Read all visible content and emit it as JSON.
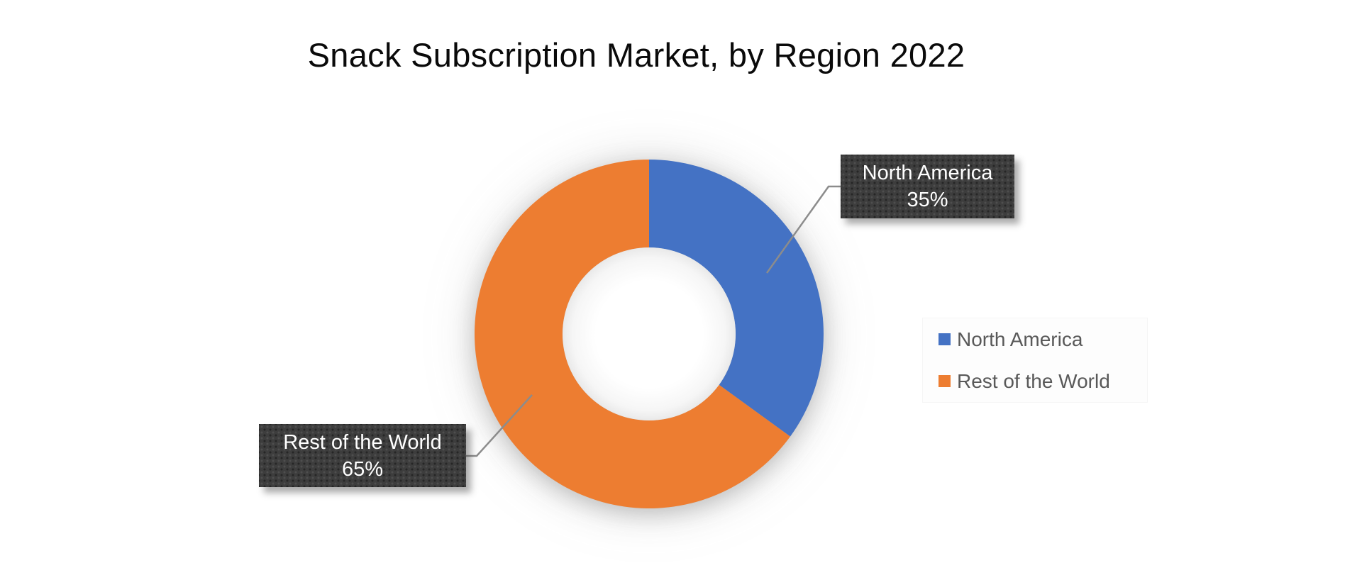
{
  "title": "Snack Subscription Market, by Region 2022",
  "colors": {
    "north_america": "#4472C4",
    "rest_of_world": "#ED7D31",
    "callout_background": "#3D3D3D",
    "callout_text": "#FFFFFF",
    "leader_line": "#8C8C8C",
    "legend_text": "#595959",
    "title_text": "#0A0A0A"
  },
  "chart_data": {
    "type": "pie",
    "subtype": "donut",
    "title": "Snack Subscription Market, by Region 2022",
    "categories": [
      "North America",
      "Rest of the World"
    ],
    "values": [
      35,
      65
    ],
    "unit": "%",
    "colors": [
      "#4472C4",
      "#ED7D31"
    ],
    "start_angle_deg": 0,
    "direction": "clockwise",
    "inner_radius_ratio": 0.5,
    "legend_position": "right",
    "data_labels": [
      {
        "category": "North America",
        "text": "North America",
        "value_text": "35%"
      },
      {
        "category": "Rest of the World",
        "text": "Rest of the World",
        "value_text": "65%"
      }
    ]
  },
  "callouts": {
    "north_america": {
      "line1": "North America",
      "line2": "35%"
    },
    "rest_of_world": {
      "line1": "Rest of the World",
      "line2": "65%"
    }
  },
  "legend": {
    "items": [
      {
        "label": "North America",
        "color": "#4472C4"
      },
      {
        "label": "Rest of the World",
        "color": "#ED7D31"
      }
    ]
  }
}
